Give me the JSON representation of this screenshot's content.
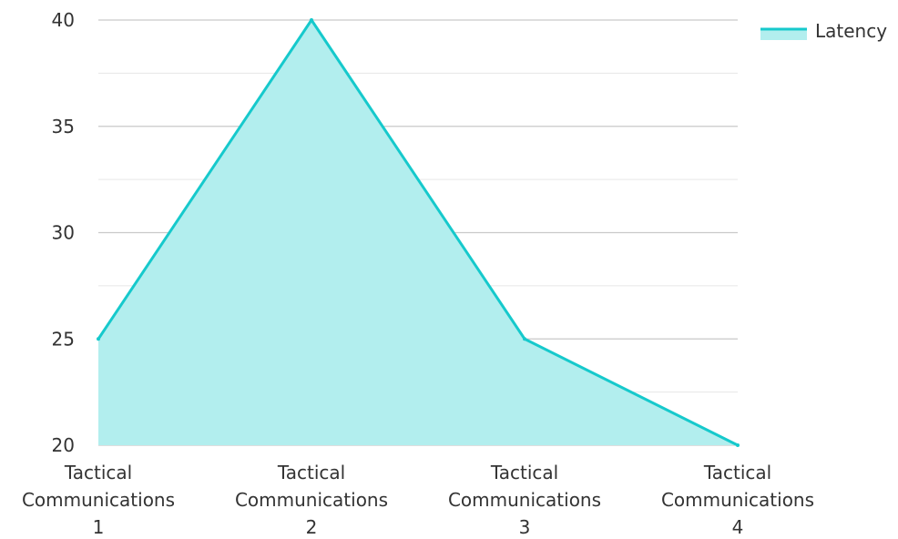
{
  "chart_data": {
    "type": "area",
    "categories": [
      [
        "Tactical",
        "Communications",
        "1"
      ],
      [
        "Tactical",
        "Communications",
        "2"
      ],
      [
        "Tactical",
        "Communications",
        "3"
      ],
      [
        "Tactical",
        "Communications",
        "4"
      ]
    ],
    "series": [
      {
        "name": "Latency",
        "values": [
          25,
          40,
          25,
          20
        ],
        "line_color": "#16c9cc",
        "fill_color": "#b2eeee"
      }
    ],
    "ylim": [
      20,
      40
    ],
    "y_ticks": [
      "20",
      "25",
      "30",
      "35",
      "40"
    ],
    "grid": true,
    "legend_position": "top-right",
    "title": "",
    "xlabel": "",
    "ylabel": ""
  }
}
